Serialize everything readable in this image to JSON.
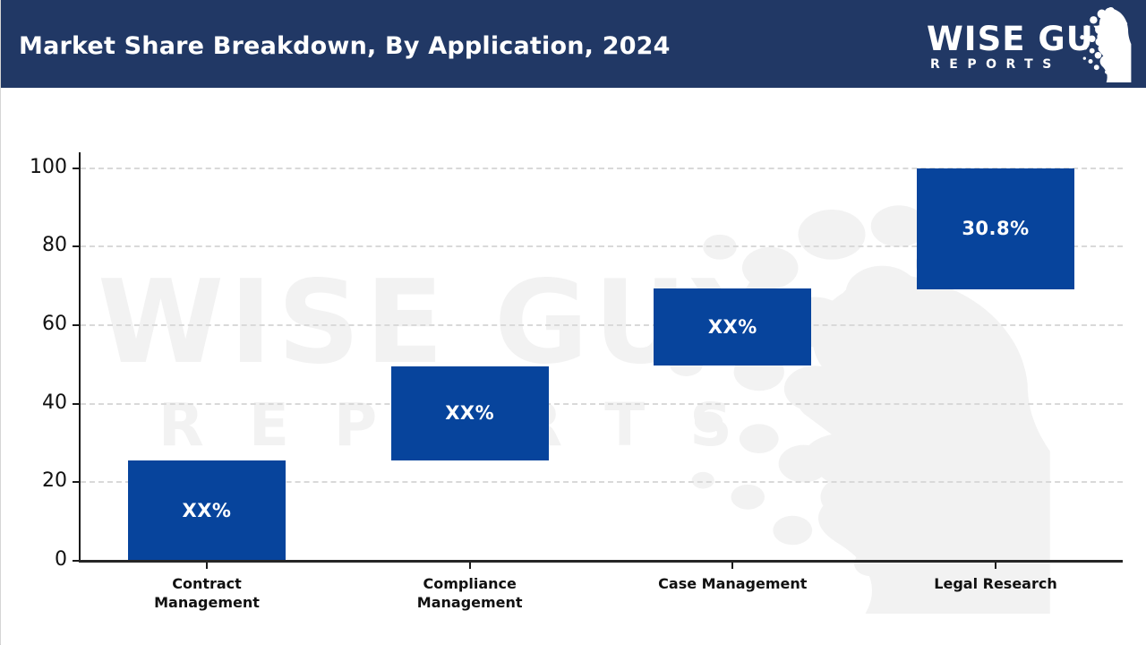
{
  "header": {
    "title": "Market Share Breakdown, By Application, 2024",
    "logo": {
      "line1": "WISE GUY",
      "line2": "REPORTS"
    }
  },
  "watermark": {
    "line1": "WISE GUY",
    "line2": "REPORTS"
  },
  "chart_data": {
    "type": "bar",
    "subtype": "floating-waterfall",
    "title": "Market Share Breakdown, By Application, 2024",
    "categories": [
      "Contract Management",
      "Compliance Management",
      "Case Management",
      "Legal Research"
    ],
    "category_lines": [
      [
        "Contract",
        "Management"
      ],
      [
        "Compliance",
        "Management"
      ],
      [
        "Case Management"
      ],
      [
        "Legal Research"
      ]
    ],
    "segments": [
      {
        "category": "Contract Management",
        "from": 0,
        "to": 25.5,
        "label": "XX%"
      },
      {
        "category": "Compliance Management",
        "from": 25.5,
        "to": 49.6,
        "label": "XX%"
      },
      {
        "category": "Case Management",
        "from": 49.6,
        "to": 69.4,
        "label": "XX%"
      },
      {
        "category": "Legal Research",
        "from": 69.2,
        "to": 100,
        "label": "30.8%"
      }
    ],
    "yticks": [
      0,
      20,
      40,
      60,
      80,
      100
    ],
    "ylim": [
      0,
      100
    ],
    "grid": "horizontal-dashed",
    "legend_position": "none",
    "bar_color": "#07449c"
  },
  "colors": {
    "header_bg": "#213865",
    "bar_fill": "#07449c",
    "bar_label_text": "#ffffff",
    "axis": "#1a1a1a",
    "gridline": "#d9d9d9",
    "watermark": "#f2f2f2",
    "title_text": "#ffffff"
  }
}
